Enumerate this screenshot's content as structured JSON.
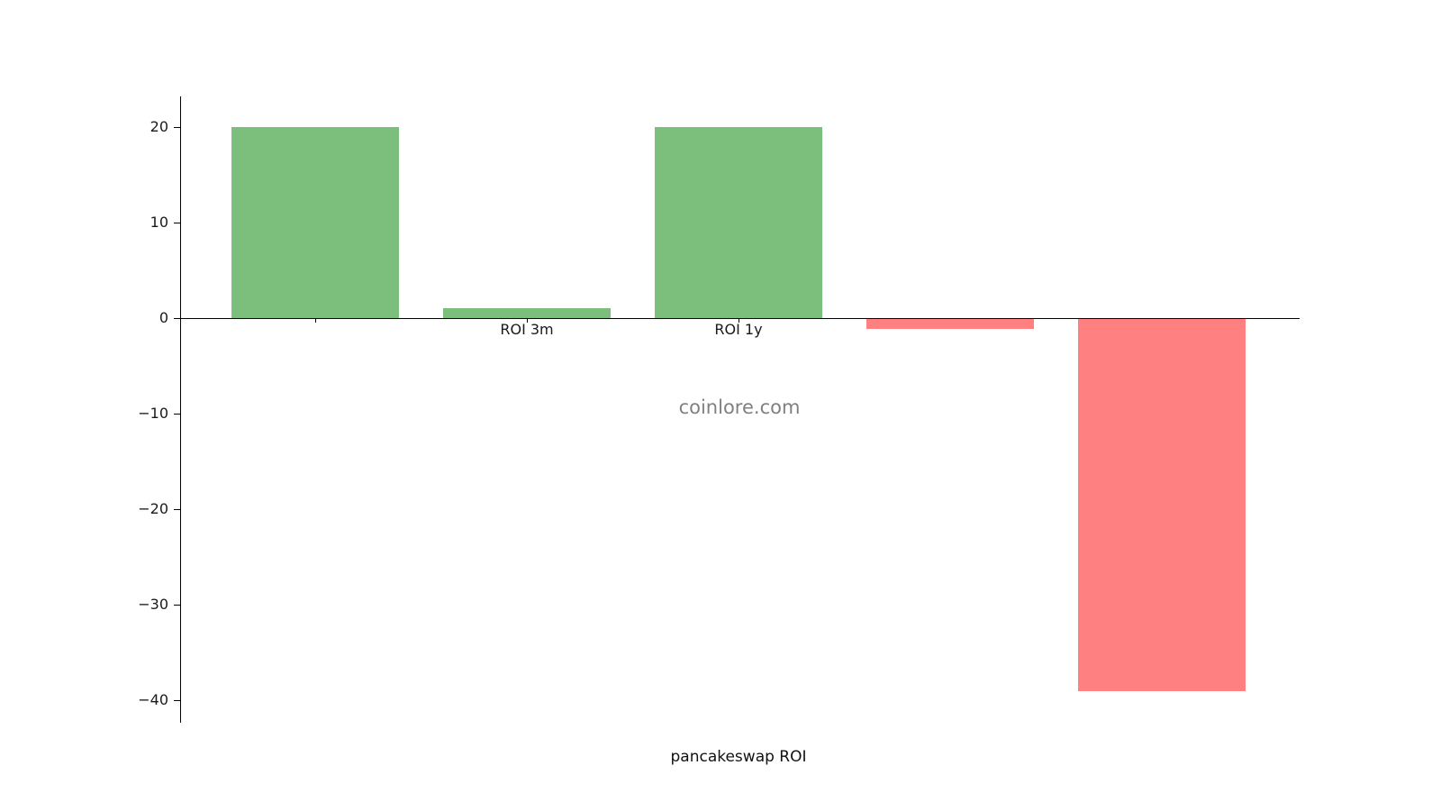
{
  "watermark": {
    "text": "coinlore.com",
    "color": "#808080"
  },
  "chart_data": {
    "type": "bar",
    "title": "",
    "xlabel": "pancakeswap ROI",
    "ylabel": "",
    "categories": [
      "",
      "ROI 3m",
      "ROI 1y",
      "",
      ""
    ],
    "values": [
      20,
      1,
      20,
      -1,
      -39
    ],
    "bar_color_positive": "#7cbe7c",
    "bar_color_negative": "#ff8080",
    "yticks": [
      20,
      10,
      0,
      -10,
      -20,
      -30,
      -40
    ],
    "ylim": [
      -42.5,
      23.2
    ],
    "x_ticks_shown": [
      0,
      1,
      2
    ],
    "axis_color": "#000000",
    "tick_label_color": "#1a1a1a",
    "grid": false,
    "legend_position": "none",
    "watermark": "coinlore.com"
  }
}
